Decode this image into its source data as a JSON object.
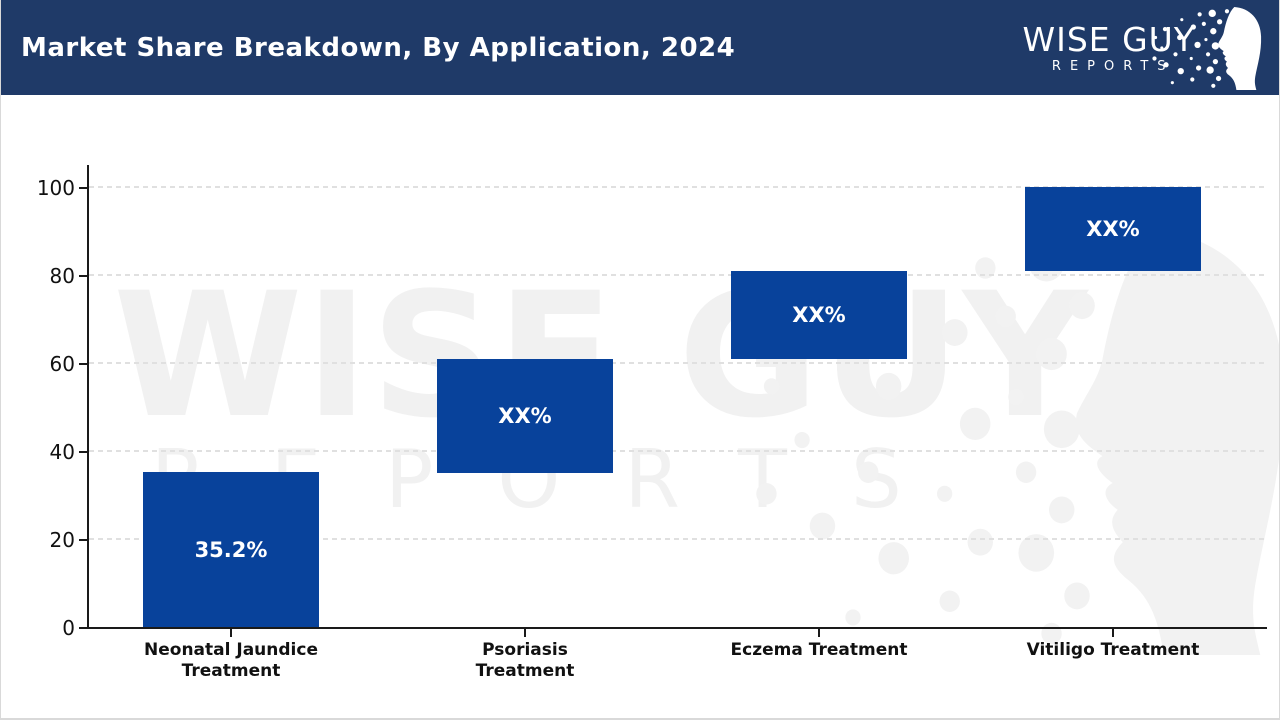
{
  "header": {
    "title": "Market Share Breakdown, By Application, 2024",
    "logo": {
      "title": "WISE GUY",
      "subtitle": "REPORTS"
    }
  },
  "watermark": {
    "title": "WISE GUY",
    "subtitle": "REPORTS"
  },
  "chart_data": {
    "type": "bar",
    "subtype": "floating-waterfall",
    "title": "Market Share Breakdown, By Application, 2024",
    "categories": [
      "Neonatal Jaundice Treatment",
      "Psoriasis Treatment",
      "Eczema Treatment",
      "Vitiligo Treatment"
    ],
    "category_label_lines": [
      [
        "Neonatal Jaundice",
        "Treatment"
      ],
      [
        "Psoriasis",
        "Treatment"
      ],
      [
        "Eczema Treatment"
      ],
      [
        "Vitiligo Treatment"
      ]
    ],
    "segments": [
      {
        "category": "Neonatal Jaundice Treatment",
        "start": 0,
        "end": 35.2,
        "label": "35.2%"
      },
      {
        "category": "Psoriasis Treatment",
        "start": 35,
        "end": 61,
        "label": "XX%"
      },
      {
        "category": "Eczema Treatment",
        "start": 61,
        "end": 81,
        "label": "XX%"
      },
      {
        "category": "Vitiligo Treatment",
        "start": 81,
        "end": 100,
        "label": "XX%"
      }
    ],
    "ylim": [
      0,
      100
    ],
    "yticks": [
      0,
      20,
      40,
      60,
      80,
      100
    ],
    "grid": {
      "horizontal": true,
      "style": "dashed"
    },
    "colors": {
      "bar": "#08429b",
      "bar_label": "#ffffff",
      "axis": "#1a1a1a",
      "grid": "#e0e0e0",
      "header_bg": "#1f3a68",
      "watermark": "#f1f1f1"
    }
  }
}
